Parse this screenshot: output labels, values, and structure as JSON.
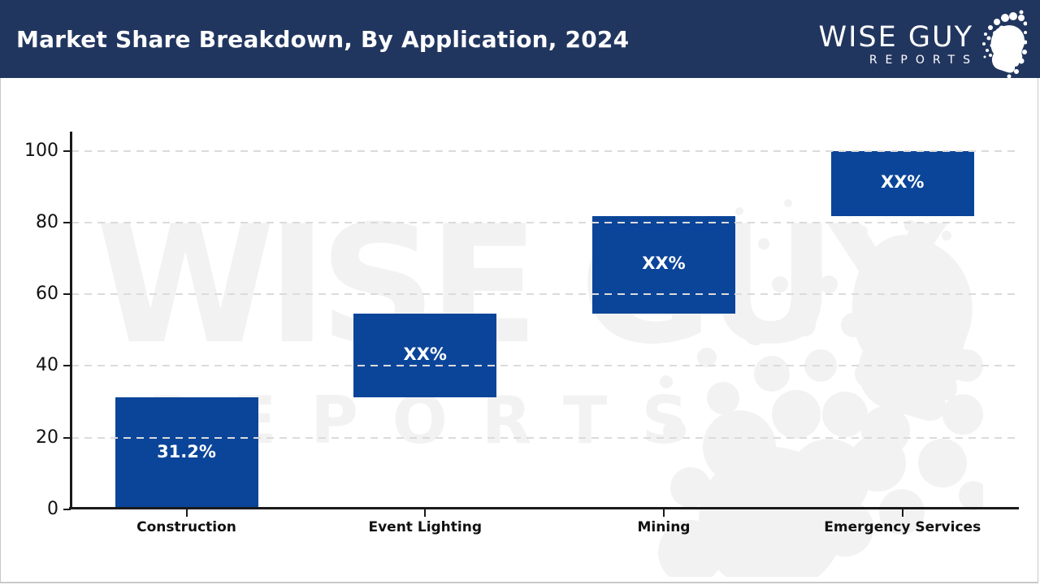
{
  "header": {
    "title": "Market Share Breakdown, By Application, 2024",
    "logo": {
      "brand": "WISE GUY",
      "sub": "REPORTS"
    }
  },
  "watermark": {
    "line1": "WISE GUY",
    "line2": "REPORTS"
  },
  "colors": {
    "header_bg": "#21365f",
    "bar": "#0b4599",
    "bar_label": "#ffffff",
    "grid": "#dbdbdb",
    "axis": "#1a1a1a",
    "watermark": "#f2f2f3"
  },
  "chart_data": {
    "type": "bar",
    "subtype": "waterfall",
    "title": "Market Share Breakdown, By Application, 2024",
    "categories": [
      "Construction",
      "Event Lighting",
      "Mining",
      "Emergency Services"
    ],
    "bars": [
      {
        "category": "Construction",
        "start": 0,
        "end": 31.2,
        "value": 31.2,
        "label": "31.2%"
      },
      {
        "category": "Event Lighting",
        "start": 31.2,
        "end": 54.6,
        "value": 23.4,
        "label": "XX%"
      },
      {
        "category": "Mining",
        "start": 54.6,
        "end": 81.8,
        "value": 27.2,
        "label": "XX%"
      },
      {
        "category": "Emergency Services",
        "start": 81.8,
        "end": 100,
        "value": 18.2,
        "label": "XX%"
      }
    ],
    "ylim": [
      0,
      100
    ],
    "yticks": [
      0,
      20,
      40,
      60,
      80,
      100
    ],
    "xlabel": "",
    "ylabel": "",
    "grid": true,
    "grid_style": "dashed",
    "legend": false
  }
}
